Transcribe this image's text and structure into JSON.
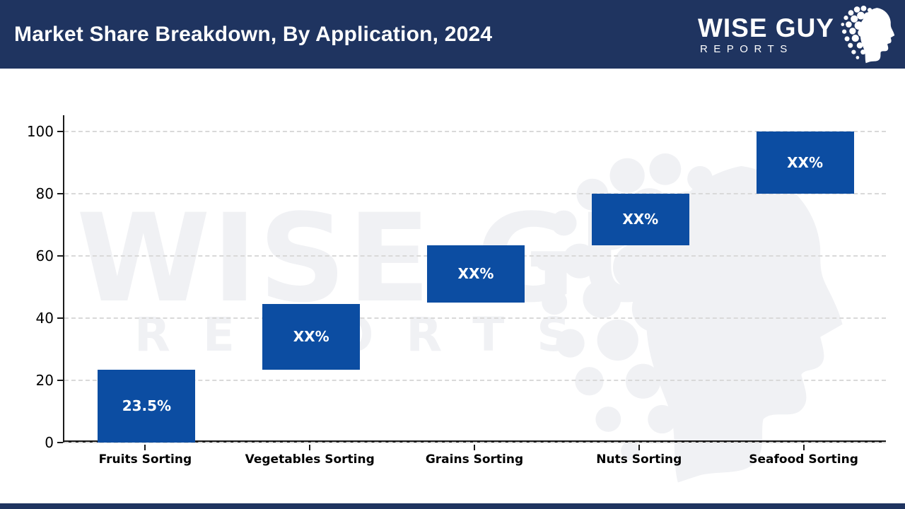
{
  "header": {
    "title": "Market Share Breakdown, By Application, 2024",
    "logo": {
      "line1": "WISE GUY",
      "line2": "REPORTS"
    }
  },
  "watermark": {
    "line1": "WISE GUY",
    "line2": "REPORTS"
  },
  "chart_data": {
    "type": "bar",
    "subtype": "waterfall",
    "title": "Market Share Breakdown, By Application, 2024",
    "categories": [
      "Fruits Sorting",
      "Vegetables Sorting",
      "Grains Sorting",
      "Nuts Sorting",
      "Seafood Sorting"
    ],
    "segments": [
      {
        "category": "Fruits Sorting",
        "start": 0,
        "end": 23.5,
        "label": "23.5%"
      },
      {
        "category": "Vegetables Sorting",
        "start": 23.5,
        "end": 44.5,
        "label": "XX%"
      },
      {
        "category": "Grains Sorting",
        "start": 45,
        "end": 63.5,
        "label": "XX%"
      },
      {
        "category": "Nuts Sorting",
        "start": 63.5,
        "end": 80,
        "label": "XX%"
      },
      {
        "category": "Seafood Sorting",
        "start": 80,
        "end": 100,
        "label": "XX%"
      }
    ],
    "yticks": [
      0,
      20,
      40,
      60,
      80,
      100
    ],
    "ylim": [
      0,
      105.2
    ],
    "xlabel": "",
    "ylabel": "",
    "grid": true,
    "legend": "none",
    "bar_color": "#0c4da2",
    "bar_label_color": "#ffffff",
    "gridline_color": "#d9d9d9"
  },
  "colors": {
    "header_bg": "#1f3460",
    "footer_bg": "#1f3460",
    "bar": "#0c4da2",
    "title_text": "#ffffff",
    "axis_text": "#000000",
    "watermark": "#f0f1f4"
  }
}
